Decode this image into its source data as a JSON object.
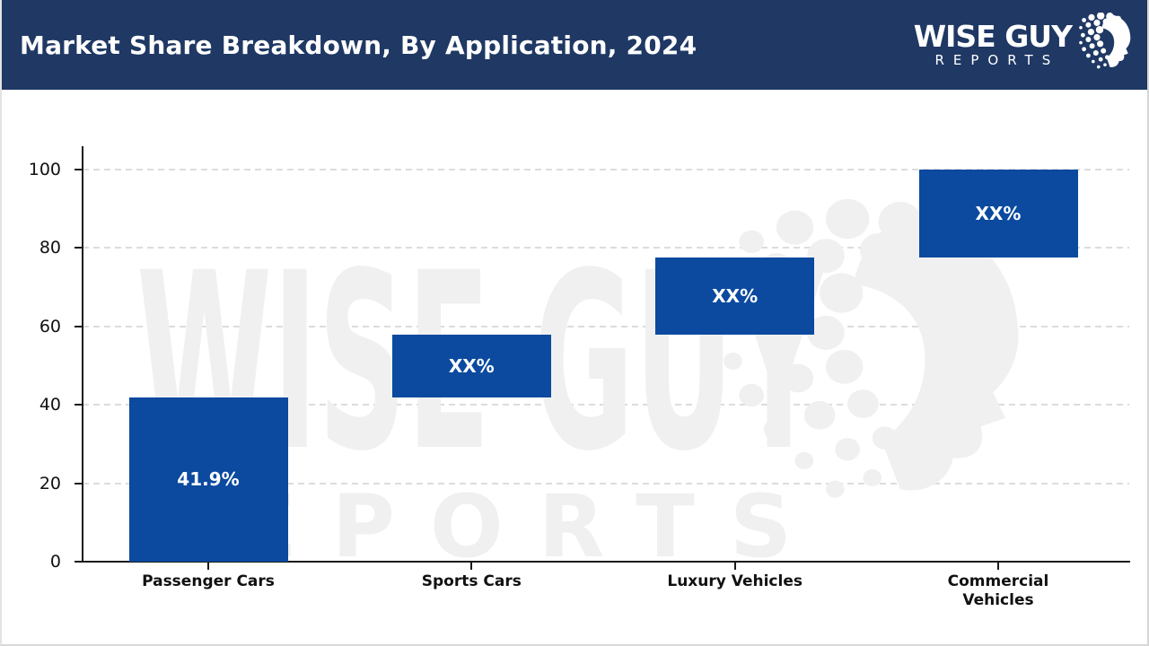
{
  "header": {
    "title": "Market Share Breakdown, By Application, 2024",
    "logo": {
      "wordmark": "WISE GUY",
      "subtext": "REPORTS"
    }
  },
  "watermark": {
    "wordmark": "WISE GUY",
    "subtext": "REPORTS"
  },
  "colors": {
    "header_bg": "#1f3864",
    "title_text": "#ffffff",
    "bar": "#0b4a9f",
    "bar_label": "#ffffff",
    "axis": "#1a1a1a",
    "grid": "#dcdcdc",
    "watermark": "#f0f0f0"
  },
  "chart_data": {
    "type": "bar",
    "subtype": "waterfall",
    "title": "Market Share Breakdown, By Application, 2024",
    "categories": [
      "Passenger Cars",
      "Sports Cars",
      "Luxury Vehicles",
      "Commercial Vehicles"
    ],
    "category_lines": [
      [
        "Passenger Cars"
      ],
      [
        "Sports Cars"
      ],
      [
        "Luxury Vehicles"
      ],
      [
        "Commercial",
        "Vehicles"
      ]
    ],
    "segments": [
      {
        "category": "Passenger Cars",
        "start": 0,
        "end": 41.9,
        "label": "41.9%",
        "value": 41.9
      },
      {
        "category": "Sports Cars",
        "start": 41.9,
        "end": 57.8,
        "label": "XX%",
        "value": null
      },
      {
        "category": "Luxury Vehicles",
        "start": 57.8,
        "end": 77.6,
        "label": "XX%",
        "value": null
      },
      {
        "category": "Commercial Vehicles",
        "start": 77.6,
        "end": 100,
        "label": "XX%",
        "value": null
      }
    ],
    "ylim": [
      0,
      100
    ],
    "yticks": [
      0,
      20,
      40,
      60,
      80,
      100
    ],
    "xlabel": "",
    "ylabel": "",
    "grid": "horizontal-dashed",
    "legend": "none"
  }
}
